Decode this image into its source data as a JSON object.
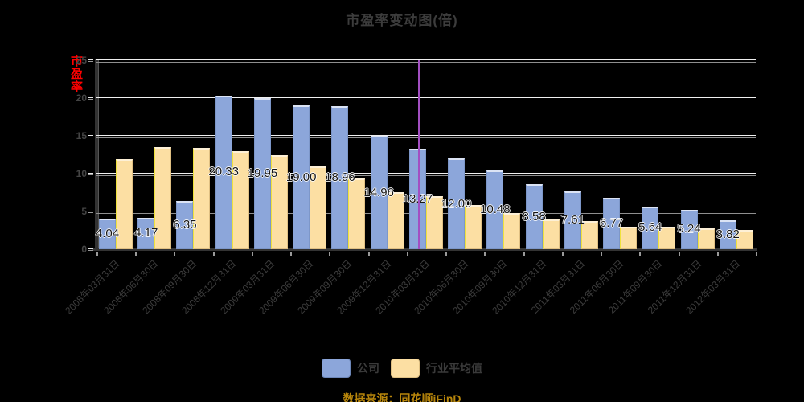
{
  "title": "市盈率变动图(倍)",
  "y_axis_unit": "市盈率",
  "source_link": "数据来源：同花顺iFinD",
  "legend": [
    {
      "label": "公司",
      "color": "#8ca6da"
    },
    {
      "label": "行业平均值",
      "color": "#fcdfa3"
    }
  ],
  "chart_data": {
    "type": "bar",
    "title": "市盈率变动图(倍)",
    "xlabel": "",
    "ylabel": "市盈率",
    "ylim": [
      0,
      25
    ],
    "yticks": [
      0,
      5,
      10,
      15,
      20,
      25
    ],
    "grid": true,
    "legend_position": "bottom",
    "categories": [
      "2008年03月31日",
      "2008年06月30日",
      "2008年09月30日",
      "2008年12月31日",
      "2009年03月31日",
      "2009年06月30日",
      "2009年09月30日",
      "2009年12月31日",
      "2010年03月31日",
      "2010年06月30日",
      "2010年09月30日",
      "2010年12月31日",
      "2011年03月31日",
      "2011年06月30日",
      "2011年09月30日",
      "2011年12月31日",
      "2012年03月31日"
    ],
    "series": [
      {
        "name": "公司",
        "color": "#8ca6da",
        "values": [
          4.04,
          4.17,
          6.35,
          20.33,
          19.95,
          19.0,
          18.96,
          14.96,
          13.27,
          12.0,
          10.48,
          8.58,
          7.61,
          6.77,
          5.64,
          5.24,
          3.82
        ],
        "labels": [
          "4.04",
          "4.17",
          "6.35",
          "20.33",
          "19.95",
          "19.00",
          "18.96",
          "14.96",
          "13.27",
          "12.00",
          "10.48",
          "8.58",
          "7.61",
          "6.77",
          "5.64",
          "5.24",
          "3.82"
        ]
      },
      {
        "name": "行业平均值",
        "color": "#fcdfa3",
        "values": [
          11.9,
          13.5,
          13.4,
          13.0,
          12.4,
          11.0,
          9.4,
          7.6,
          7.0,
          5.9,
          4.8,
          3.9,
          3.75,
          3.0,
          3.0,
          2.8,
          2.6
        ],
        "labels": []
      }
    ],
    "crosshair_x_category_index": 8
  },
  "colors": {
    "background": "#000000",
    "title_text": "#3c3c3c",
    "axis_unit_text": "#ff0000",
    "gridline": "#f0f0f0",
    "company_bar": "#8ca6da",
    "industry_bar": "#fcdfa3",
    "crosshair": "#a34fc2",
    "source_link": "#b8860b"
  }
}
